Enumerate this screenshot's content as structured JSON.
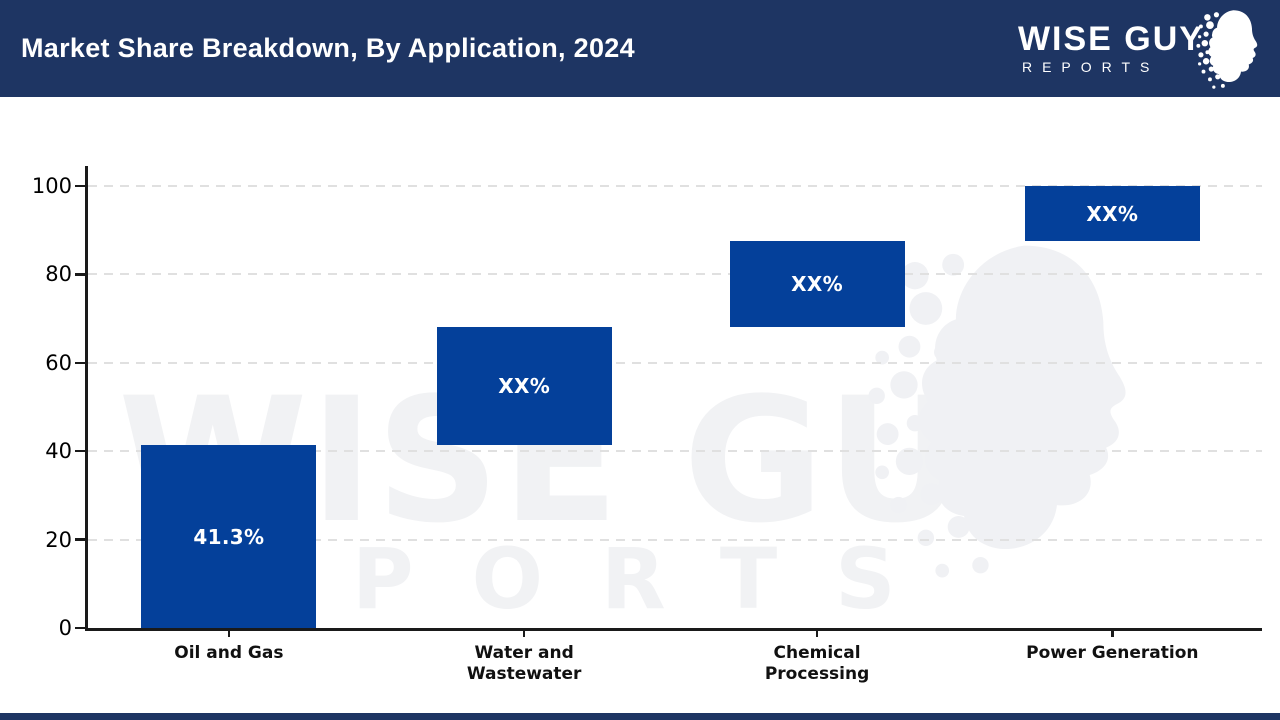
{
  "header": {
    "title": "Market Share Breakdown, By Application, 2024",
    "logo": {
      "line1": "WISE GUY",
      "line2": "REPORTS"
    }
  },
  "watermark": {
    "line1": "WISE GUY",
    "line2": "PORTS"
  },
  "chart_data": {
    "type": "bar",
    "subtype": "floating-waterfall",
    "title": "Market Share Breakdown, By Application, 2024",
    "categories": [
      "Oil and Gas",
      "Water and\nWastewater",
      "Chemical\nProcessing",
      "Power Generation"
    ],
    "segments": [
      {
        "category": "Oil and Gas",
        "start": 0,
        "end": 41.3,
        "label": "41.3%"
      },
      {
        "category": "Water and Wastewater",
        "start": 41.3,
        "end": 68,
        "label": "XX%"
      },
      {
        "category": "Chemical Processing",
        "start": 68,
        "end": 87.5,
        "label": "XX%"
      },
      {
        "category": "Power Generation",
        "start": 87.5,
        "end": 100,
        "label": "XX%"
      }
    ],
    "yticks": [
      0,
      20,
      40,
      60,
      80,
      100
    ],
    "ylim": [
      0,
      104.5
    ],
    "grid": "horizontal-dashed",
    "legend": "none",
    "colors": {
      "bar": "#04409A",
      "bar_label": "#FFFFFF",
      "grid": "#E0E0E0",
      "axis": "#1A1A1A",
      "header_bg": "#1E3563",
      "watermark": "#F1F2F4"
    }
  }
}
